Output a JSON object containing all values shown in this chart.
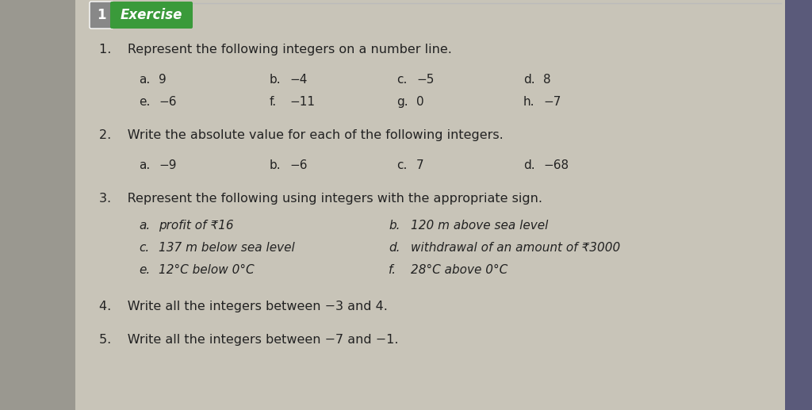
{
  "title_num": "1",
  "title_text": "Exercise",
  "title_bg": "#3a9a3a",
  "title_num_bg": "#888888",
  "page_bg": "#c8c4b8",
  "content_bg": "#dddad0",
  "left_strip_color": "#9a9890",
  "q1_header": "1.    Represent the following integers on a number line.",
  "q1_items": [
    [
      "a.",
      "9",
      "b.",
      "−4",
      "c.",
      "−5",
      "d.",
      "8"
    ],
    [
      "e.",
      "−6",
      "f.",
      "−11",
      "g.",
      "0",
      "h.",
      "−7"
    ]
  ],
  "q2_header": "2.    Write the absolute value for each of the following integers.",
  "q2_items": [
    [
      "a.",
      "−9",
      "b.",
      "−6",
      "c.",
      "7",
      "d.",
      "−68"
    ]
  ],
  "q3_header": "3.    Represent the following using integers with the appropriate sign.",
  "q3_items_left": [
    [
      "a.",
      "profit of ₹16"
    ],
    [
      "c.",
      "137 m below sea level"
    ],
    [
      "e.",
      "12°C below 0°C"
    ]
  ],
  "q3_items_right": [
    [
      "b.",
      "120 m above sea level"
    ],
    [
      "d.",
      "withdrawal of an amount of ₹3000"
    ],
    [
      "f.",
      "28°C above 0°C"
    ]
  ],
  "q4_text": "4.    Write all the integers between −3 and 4.",
  "q5_text": "5.    Write all the integers between −7 and −1.",
  "font_size_header": 11.5,
  "font_size_items": 11,
  "font_size_title": 12,
  "text_color": "#222222",
  "header_line_color": "#bbbbbb"
}
